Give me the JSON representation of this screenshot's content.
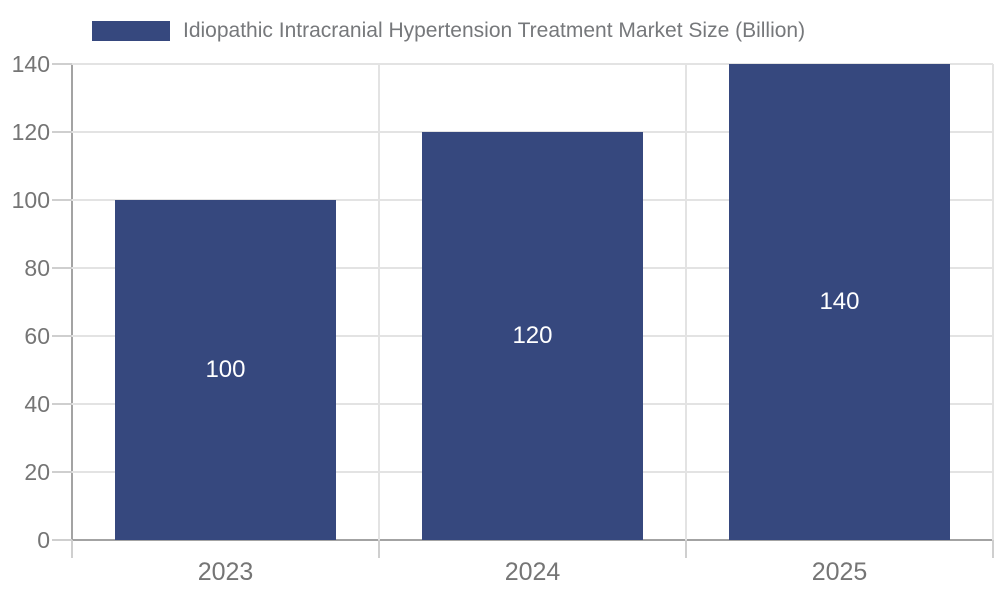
{
  "chart_data": {
    "type": "bar",
    "title": "Idiopathic Intracranial Hypertension Treatment Market Size (Billion)",
    "legend": {
      "label": "Idiopathic Intracranial Hypertension Treatment Market Size (Billion)",
      "position": "top-left"
    },
    "categories": [
      "2023",
      "2024",
      "2025"
    ],
    "values": [
      100,
      120,
      140
    ],
    "bar_value_labels": [
      "100",
      "120",
      "140"
    ],
    "xlabel": "",
    "ylabel": "",
    "ylim": [
      0,
      140
    ],
    "yticks": [
      0,
      20,
      40,
      60,
      80,
      100,
      120,
      140
    ],
    "grid": true,
    "colors": {
      "bar": "#36487E",
      "bar_label_text": "#FFFFFF",
      "grid_line": "#E3E3E3",
      "axis_line": "#A3A3A3",
      "tick_mark": "#CFCFCF",
      "tick_label_text": "#757575",
      "legend_text": "#76787B",
      "background": "#FFFFFF"
    }
  }
}
